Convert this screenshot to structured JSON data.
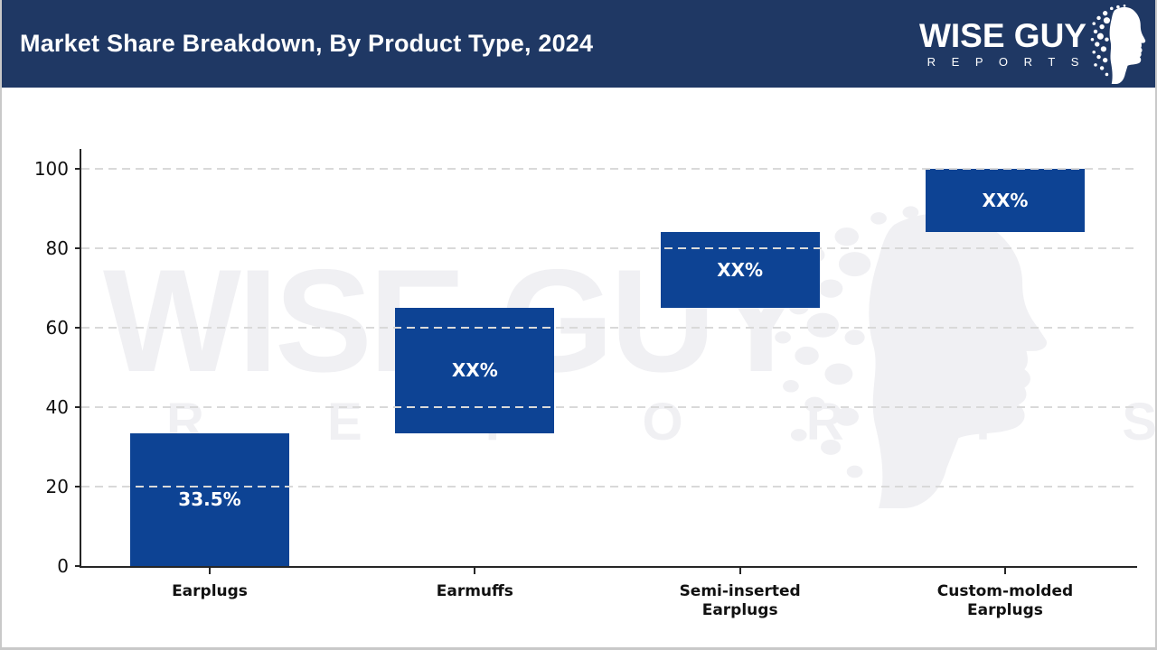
{
  "header": {
    "title": "Market Share Breakdown, By Product Type, 2024",
    "logo": {
      "name": "WISE GUY",
      "tagline": "R E P O R T S"
    }
  },
  "watermark": {
    "name": "WISE GUY",
    "tagline": "R E P O R T S"
  },
  "chart_data": {
    "type": "bar",
    "subtype": "floating-segment-bars",
    "title": "Market Share Breakdown, By Product Type, 2024",
    "categories": [
      "Earplugs",
      "Earmuffs",
      "Semi-inserted Earplugs",
      "Custom-molded Earplugs"
    ],
    "segments": [
      {
        "category": "Earplugs",
        "start": 0,
        "end": 33.5,
        "label": "33.5%"
      },
      {
        "category": "Earmuffs",
        "start": 33.5,
        "end": 65,
        "label": "XX%"
      },
      {
        "category": "Semi-inserted Earplugs",
        "start": 65,
        "end": 84,
        "label": "XX%"
      },
      {
        "category": "Custom-molded Earplugs",
        "start": 84,
        "end": 100,
        "label": "XX%"
      }
    ],
    "xlabel": "",
    "ylabel": "",
    "ylim": [
      0,
      105
    ],
    "yticks": [
      0,
      20,
      40,
      60,
      80,
      100
    ],
    "grid": "horizontal-dashed",
    "legend": "none"
  },
  "colors": {
    "header_bg": "#1f3864",
    "title_text": "#ffffff",
    "bar": "#0d4394",
    "bar_label": "#ffffff",
    "grid": "#d9d9d9",
    "axis": "#262626",
    "tick_label": "#111111",
    "watermark": "#f0f0f3",
    "page_border": "#c9c9c9"
  }
}
